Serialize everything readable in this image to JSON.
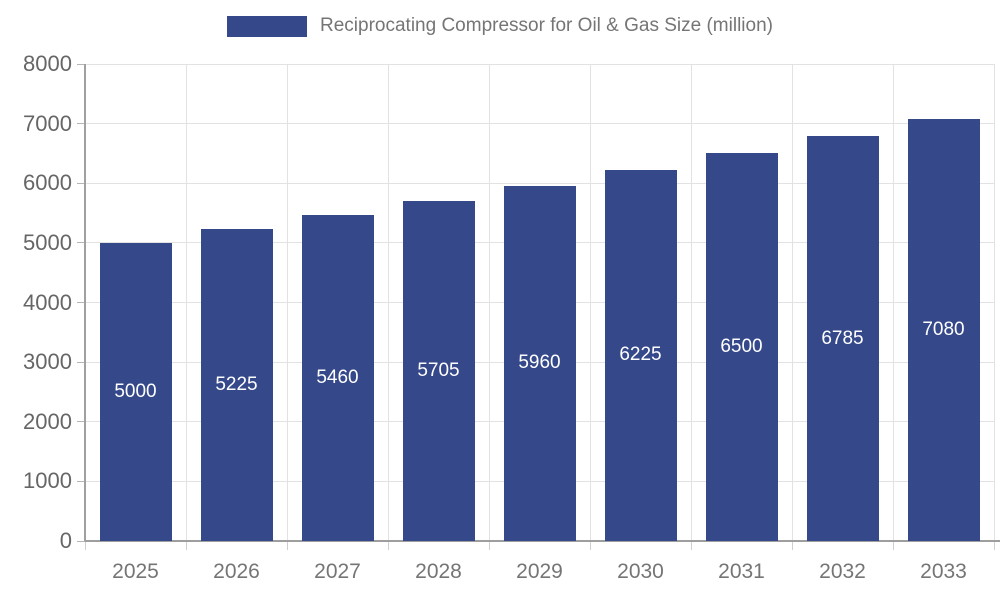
{
  "chart_data": {
    "type": "bar",
    "title": "Reciprocating Compressor for Oil & Gas Size (million)",
    "legend_entries": [
      "Reciprocating Compressor for Oil & Gas Size (million)"
    ],
    "legend_position": "top",
    "categories": [
      "2025",
      "2026",
      "2027",
      "2028",
      "2029",
      "2030",
      "2031",
      "2032",
      "2033"
    ],
    "values": [
      5000,
      5225,
      5460,
      5705,
      5960,
      6225,
      6500,
      6785,
      7080
    ],
    "data_labels_shown": true,
    "xlabel": "",
    "ylabel": "",
    "ylim": [
      0,
      8000
    ],
    "ytick_step": 1000,
    "ytick_labels": [
      "0",
      "1000",
      "2000",
      "3000",
      "4000",
      "5000",
      "6000",
      "7000",
      "8000"
    ],
    "grid": true,
    "colors": {
      "bar": "#35488a",
      "bar_label_text": "#ffffff",
      "legend_text": "#757575",
      "y_axis_text": "#666666",
      "x_axis_text": "#757575",
      "grid_line": "#e2e2e2",
      "axis_line": "#a0a0a0",
      "background": "#ffffff"
    }
  }
}
